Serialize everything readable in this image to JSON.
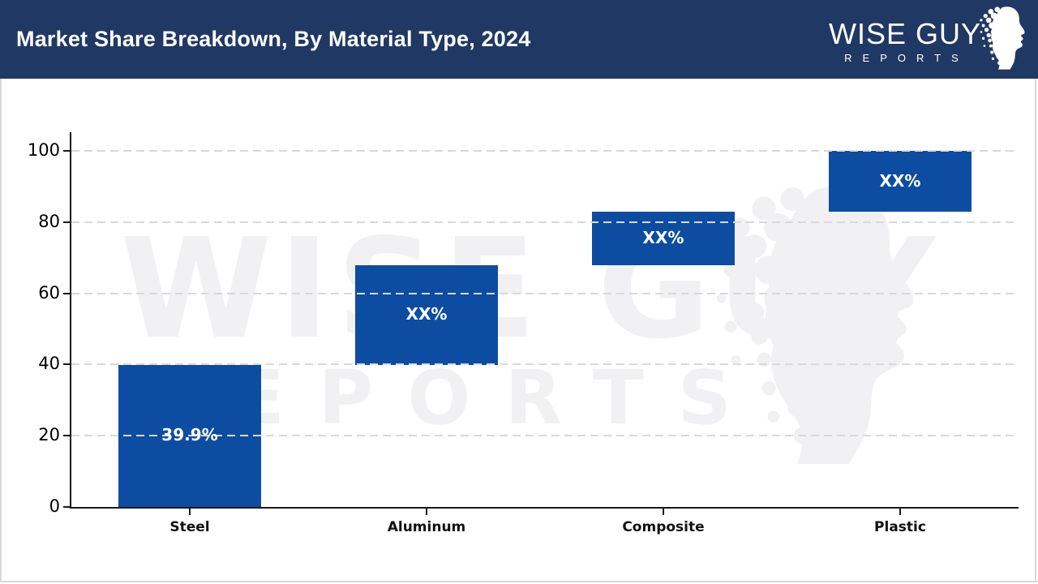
{
  "header": {
    "title": "Market Share Breakdown, By Material Type, 2024",
    "bg_color": "#203864",
    "logo": {
      "line1": "WISE GUY",
      "line2": "REPORTS"
    }
  },
  "watermark": {
    "line1": "WISE GUY",
    "line2": "REPORTS"
  },
  "chart_data": {
    "type": "bar",
    "subtype": "waterfall",
    "title": "Market Share Breakdown, By Material Type, 2024",
    "categories": [
      "Steel",
      "Aluminum",
      "Composite",
      "Plastic"
    ],
    "segments": [
      {
        "category": "Steel",
        "label": "39.9%",
        "start": 0,
        "end": 39.9
      },
      {
        "category": "Aluminum",
        "label": "XX%",
        "start": 39.9,
        "end": 67.9
      },
      {
        "category": "Composite",
        "label": "XX%",
        "start": 67.9,
        "end": 82.9
      },
      {
        "category": "Plastic",
        "label": "XX%",
        "start": 82.9,
        "end": 100
      }
    ],
    "xlabel": "",
    "ylabel": "",
    "ylim": [
      0,
      100
    ],
    "yticks": [
      0,
      20,
      40,
      60,
      80,
      100
    ],
    "grid": "horizontal dashed, drawn above bars",
    "legend": "none",
    "bar_color": "#0c4da2",
    "bar_label_color": "#ffffff",
    "axis_color": "#1a1a1a",
    "gridline_color": "#d9d9d9"
  }
}
